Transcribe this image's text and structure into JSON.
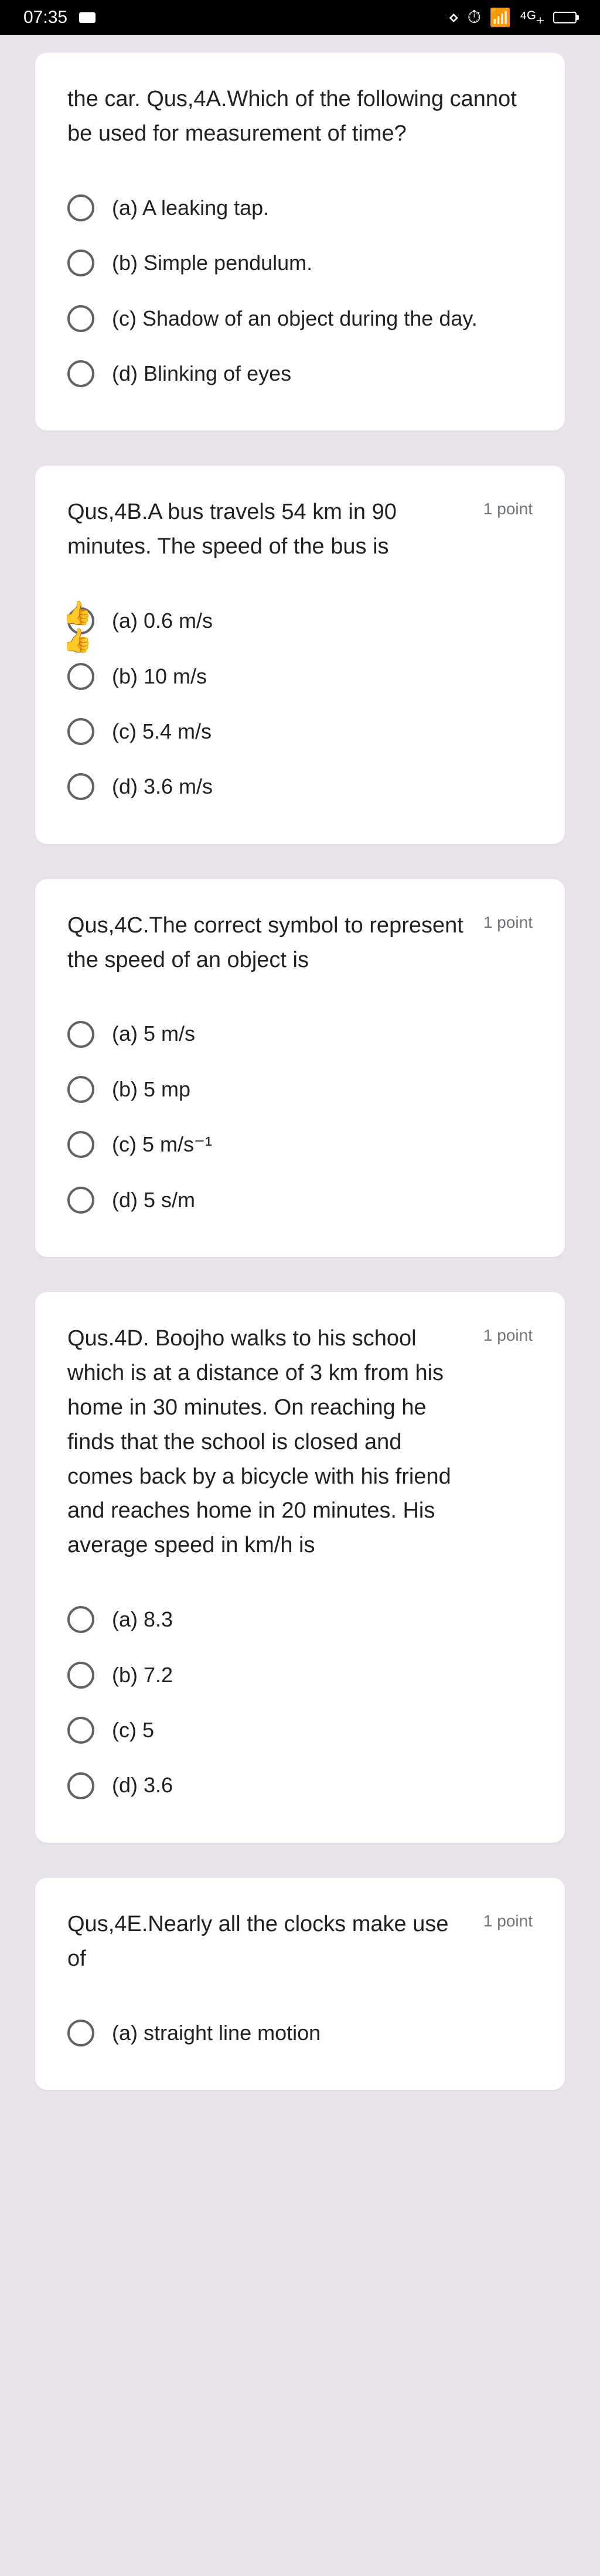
{
  "statusBar": {
    "time": "07:35",
    "signalText": "⁴ᴳ₊"
  },
  "questions": {
    "q4a": {
      "text": "the car. Qus,4A.Which of the following cannot be used for measurement of time?",
      "options": {
        "a": "(a) A leaking tap.",
        "b": "(b) Simple pendulum.",
        "c": "(c) Shadow of an object during the day.",
        "d": "(d) Blinking of eyes"
      }
    },
    "q4b": {
      "title": "Qus,4B.A bus travels 54 km in 90 minutes. The speed of the bus is",
      "points": "1 point",
      "options": {
        "a": "(a) 0.6 m/s",
        "b": "(b) 10 m/s",
        "c": "(c) 5.4 m/s",
        "d": "(d) 3.6 m/s"
      }
    },
    "q4c": {
      "title": "Qus,4C.The correct symbol to represent the speed of an object is",
      "points": "1 point",
      "options": {
        "a": "(a) 5 m/s",
        "b": "(b) 5 mp",
        "c": "(c) 5 m/s⁻¹",
        "d": "(d) 5 s/m"
      }
    },
    "q4d": {
      "title": "Qus.4D. Boojho walks to his school which is at a distance of 3 km from his home in 30 minutes. On reaching he finds that the school is closed and comes back by a bicycle with his friend and reaches home in 20 minutes. His average speed in km/h is",
      "points": "1 point",
      "options": {
        "a": "(a) 8.3",
        "b": "(b) 7.2",
        "c": "(c) 5",
        "d": "(d) 3.6"
      }
    },
    "q4e": {
      "title": "Qus,4E.Nearly all the clocks make use of",
      "points": "1 point",
      "options": {
        "a": "(a) straight line motion"
      }
    }
  }
}
